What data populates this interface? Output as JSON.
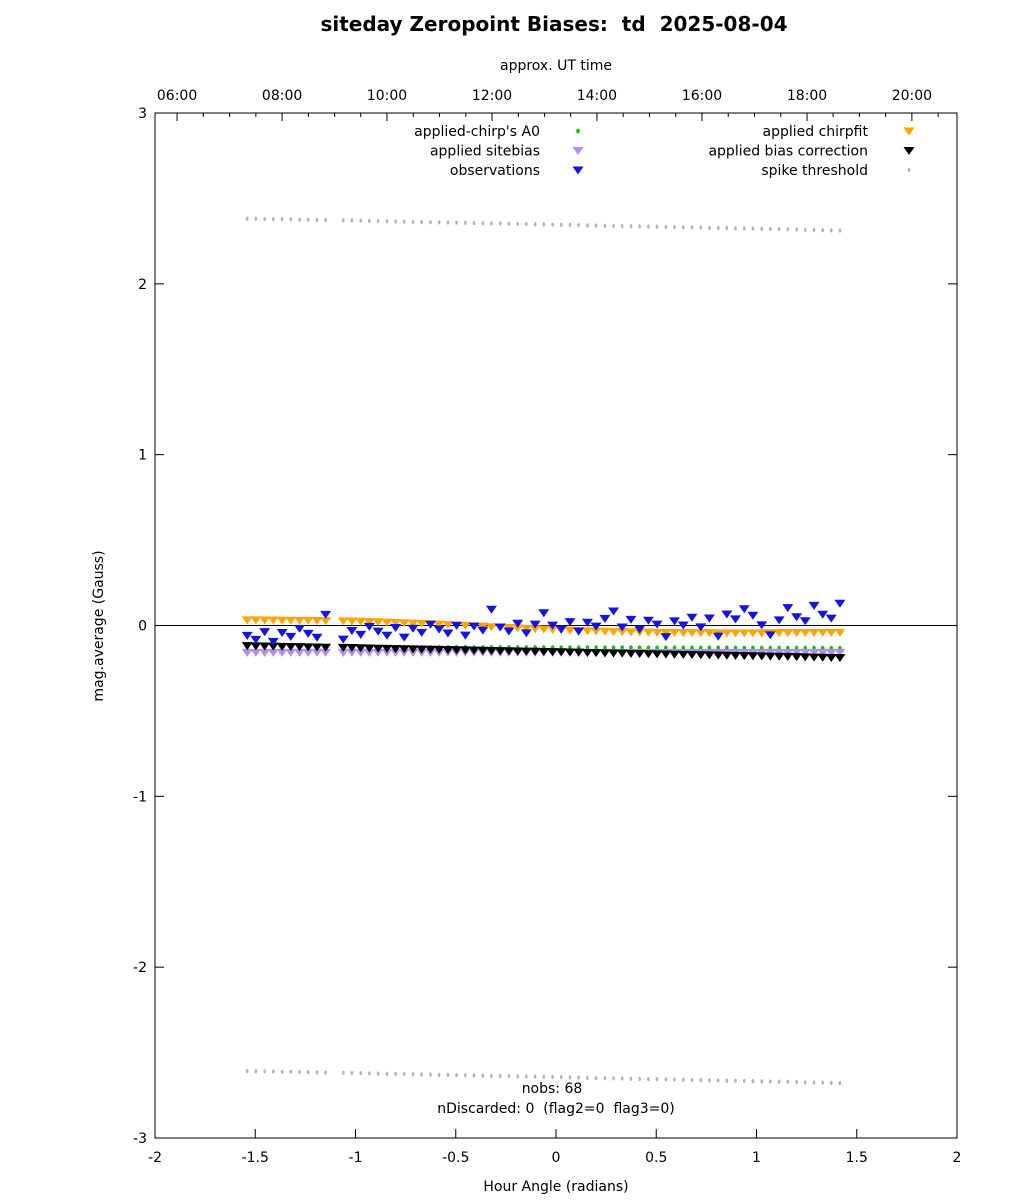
{
  "title": "siteday Zeropoint Biases:  td  2025-08-04",
  "annotations": {
    "nobs": "nobs: 68",
    "ndiscarded": "nDiscarded: 0  (flag2=0  flag3=0)"
  },
  "legend": {
    "items": [
      {
        "label": "applied-chirp's A0",
        "marker": "dot-small",
        "color": "#00c400"
      },
      {
        "label": "applied chirpfit",
        "marker": "triangle-down",
        "color": "#ffa500"
      },
      {
        "label": "applied sitebias",
        "marker": "triangle-down",
        "color": "#b18ff2"
      },
      {
        "label": "applied bias correction",
        "marker": "triangle-down",
        "color": "#000000"
      },
      {
        "label": "observations",
        "marker": "triangle-down",
        "color": "#1414e0"
      },
      {
        "label": "spike threshold",
        "marker": "dot-tiny",
        "color": "#b2b2b2"
      }
    ]
  },
  "chart_data": {
    "type": "scatter",
    "title": "siteday Zeropoint Biases:  td  2025-08-04",
    "xlabel": "Hour Angle (radians)",
    "x2label": "approx. UT time",
    "ylabel": "mag.average (Gauss)",
    "xlim": [
      -2,
      2
    ],
    "ylim": [
      -3,
      3
    ],
    "grid": false,
    "legend_position": "top-inside-two-columns",
    "axes": {
      "left": {
        "label": "mag.average (Gauss)",
        "tick_labels": [
          "3",
          "2",
          "1",
          "0",
          "-1",
          "-2",
          "-3"
        ],
        "tick_values": [
          3,
          2,
          1,
          0,
          -1,
          -2,
          -3
        ]
      },
      "bottom": {
        "label": "Hour Angle (radians)",
        "tick_labels": [
          "-2",
          "-1.5",
          "-1",
          "-0.5",
          "0",
          "0.5",
          "1",
          "1.5",
          "2"
        ],
        "tick_values": [
          -2,
          -1.5,
          -1,
          -0.5,
          0,
          0.5,
          1,
          1.5,
          2
        ]
      },
      "top": {
        "label": "approx. UT time",
        "major_tick_labels": [
          "06:00",
          "08:00",
          "10:00",
          "12:00",
          "14:00",
          "16:00",
          "18:00",
          "20:00"
        ],
        "major_tick_ha": [
          -1.89,
          -1.366,
          -0.843,
          -0.319,
          0.204,
          0.728,
          1.252,
          1.775
        ],
        "minor_tick_ha": [
          -1.759,
          -1.628,
          -1.497,
          -1.235,
          -1.104,
          -0.974,
          -0.712,
          -0.581,
          -0.45,
          -0.188,
          -0.057,
          0.073,
          0.335,
          0.466,
          0.597,
          0.859,
          0.99,
          1.121,
          1.382,
          1.513,
          1.644,
          1.906
        ]
      }
    },
    "nobs": 68,
    "ndiscarded": 0,
    "x": [
      -1.54,
      -1.497,
      -1.453,
      -1.41,
      -1.366,
      -1.323,
      -1.279,
      -1.236,
      -1.192,
      -1.149,
      -1.061,
      -1.018,
      -0.974,
      -0.931,
      -0.887,
      -0.843,
      -0.8,
      -0.757,
      -0.713,
      -0.67,
      -0.626,
      -0.583,
      -0.539,
      -0.496,
      -0.452,
      -0.409,
      -0.365,
      -0.322,
      -0.278,
      -0.235,
      -0.191,
      -0.148,
      -0.104,
      -0.061,
      -0.017,
      0.026,
      0.07,
      0.113,
      0.157,
      0.2,
      0.244,
      0.287,
      0.33,
      0.374,
      0.417,
      0.461,
      0.504,
      0.548,
      0.591,
      0.635,
      0.678,
      0.722,
      0.765,
      0.809,
      0.852,
      0.895,
      0.939,
      0.982,
      1.026,
      1.069,
      1.113,
      1.156,
      1.2,
      1.243,
      1.287,
      1.33,
      1.373,
      1.416
    ],
    "series": [
      {
        "name": "applied-chirp's A0",
        "marker": "dot-small",
        "color": "#00c400",
        "values": [
          -0.126,
          -0.126,
          -0.126,
          -0.126,
          -0.126,
          -0.127,
          -0.127,
          -0.127,
          -0.127,
          -0.127,
          -0.127,
          -0.127,
          -0.127,
          -0.127,
          -0.127,
          -0.128,
          -0.128,
          -0.128,
          -0.128,
          -0.128,
          -0.128,
          -0.128,
          -0.128,
          -0.128,
          -0.128,
          -0.129,
          -0.129,
          -0.129,
          -0.129,
          -0.129,
          -0.129,
          -0.129,
          -0.129,
          -0.129,
          -0.129,
          -0.13,
          -0.13,
          -0.13,
          -0.13,
          -0.13,
          -0.13,
          -0.13,
          -0.13,
          -0.13,
          -0.13,
          -0.131,
          -0.131,
          -0.131,
          -0.131,
          -0.131,
          -0.131,
          -0.131,
          -0.131,
          -0.131,
          -0.131,
          -0.132,
          -0.132,
          -0.132,
          -0.132,
          -0.132,
          -0.132,
          -0.132,
          -0.132,
          -0.132,
          -0.132,
          -0.133,
          -0.133,
          -0.133
        ]
      },
      {
        "name": "applied chirpfit",
        "marker": "triangle-down",
        "color": "#ffa500",
        "values": [
          0.033,
          0.033,
          0.032,
          0.032,
          0.031,
          0.031,
          0.03,
          0.03,
          0.029,
          0.028,
          0.027,
          0.026,
          0.025,
          0.023,
          0.022,
          0.02,
          0.018,
          0.016,
          0.014,
          0.012,
          0.01,
          0.008,
          0.006,
          0.003,
          0.001,
          -0.002,
          -0.004,
          -0.007,
          -0.009,
          -0.012,
          -0.014,
          -0.017,
          -0.019,
          -0.021,
          -0.023,
          -0.025,
          -0.027,
          -0.029,
          -0.031,
          -0.032,
          -0.034,
          -0.035,
          -0.036,
          -0.037,
          -0.038,
          -0.039,
          -0.04,
          -0.04,
          -0.041,
          -0.041,
          -0.042,
          -0.042,
          -0.042,
          -0.043,
          -0.043,
          -0.043,
          -0.043,
          -0.043,
          -0.043,
          -0.042,
          -0.042,
          -0.042,
          -0.041,
          -0.041,
          -0.041,
          -0.04,
          -0.04,
          -0.04
        ]
      },
      {
        "name": "applied sitebias",
        "marker": "triangle-down",
        "color": "#b18ff2",
        "values": [
          -0.157,
          -0.157,
          -0.157,
          -0.157,
          -0.157,
          -0.157,
          -0.157,
          -0.157,
          -0.157,
          -0.157,
          -0.157,
          -0.157,
          -0.157,
          -0.157,
          -0.157,
          -0.157,
          -0.157,
          -0.157,
          -0.157,
          -0.157,
          -0.157,
          -0.157,
          -0.157,
          -0.157,
          -0.157,
          -0.157,
          -0.157,
          -0.157,
          -0.157,
          -0.157,
          -0.157,
          -0.157,
          -0.157,
          -0.157,
          -0.157,
          -0.157,
          -0.157,
          -0.157,
          -0.157,
          -0.157,
          -0.157,
          -0.157,
          -0.157,
          -0.157,
          -0.157,
          -0.157,
          -0.157,
          -0.157,
          -0.157,
          -0.157,
          -0.157,
          -0.157,
          -0.157,
          -0.157,
          -0.157,
          -0.157,
          -0.157,
          -0.157,
          -0.157,
          -0.157,
          -0.157,
          -0.157,
          -0.157,
          -0.157,
          -0.157,
          -0.157,
          -0.157,
          -0.157
        ]
      },
      {
        "name": "applied bias correction",
        "marker": "triangle-down",
        "color": "#000000",
        "values": [
          -0.118,
          -0.119,
          -0.12,
          -0.121,
          -0.122,
          -0.123,
          -0.124,
          -0.125,
          -0.126,
          -0.127,
          -0.128,
          -0.129,
          -0.13,
          -0.132,
          -0.133,
          -0.134,
          -0.135,
          -0.136,
          -0.137,
          -0.138,
          -0.139,
          -0.14,
          -0.141,
          -0.142,
          -0.143,
          -0.144,
          -0.145,
          -0.146,
          -0.147,
          -0.148,
          -0.149,
          -0.15,
          -0.151,
          -0.152,
          -0.153,
          -0.154,
          -0.155,
          -0.156,
          -0.158,
          -0.159,
          -0.16,
          -0.161,
          -0.162,
          -0.163,
          -0.164,
          -0.165,
          -0.166,
          -0.167,
          -0.168,
          -0.169,
          -0.17,
          -0.171,
          -0.172,
          -0.173,
          -0.174,
          -0.175,
          -0.176,
          -0.177,
          -0.178,
          -0.179,
          -0.18,
          -0.181,
          -0.182,
          -0.184,
          -0.185,
          -0.186,
          -0.187,
          -0.188
        ]
      },
      {
        "name": "observations",
        "marker": "triangle-down",
        "color": "#1414e0",
        "values": [
          -0.058,
          -0.081,
          -0.036,
          -0.093,
          -0.041,
          -0.064,
          -0.017,
          -0.046,
          -0.069,
          0.065,
          -0.08,
          -0.029,
          -0.052,
          -0.005,
          -0.033,
          -0.057,
          -0.012,
          -0.068,
          -0.016,
          -0.04,
          0.007,
          -0.021,
          -0.044,
          0.001,
          -0.056,
          -0.004,
          -0.027,
          0.095,
          -0.009,
          -0.032,
          0.013,
          -0.043,
          0.008,
          0.075,
          0.002,
          -0.021,
          0.023,
          -0.033,
          0.019,
          -0.004,
          0.042,
          0.085,
          -0.009,
          0.036,
          -0.021,
          0.031,
          0.008,
          -0.065,
          0.027,
          0.003,
          0.048,
          -0.008,
          0.044,
          -0.062,
          0.067,
          0.039,
          0.098,
          0.06,
          0.004,
          -0.055,
          0.033,
          0.105,
          0.051,
          0.028,
          0.118,
          0.066,
          0.043,
          0.13
        ]
      },
      {
        "name": "spike threshold (upper)",
        "marker": "dot-tiny",
        "color": "#b2b2b2",
        "values": [
          2.382,
          2.381,
          2.38,
          2.379,
          2.378,
          2.377,
          2.376,
          2.375,
          2.374,
          2.373,
          2.372,
          2.371,
          2.37,
          2.368,
          2.367,
          2.366,
          2.365,
          2.364,
          2.363,
          2.362,
          2.361,
          2.36,
          2.359,
          2.358,
          2.357,
          2.356,
          2.355,
          2.354,
          2.353,
          2.352,
          2.351,
          2.35,
          2.349,
          2.348,
          2.347,
          2.346,
          2.345,
          2.344,
          2.342,
          2.341,
          2.34,
          2.339,
          2.338,
          2.337,
          2.336,
          2.335,
          2.334,
          2.333,
          2.332,
          2.331,
          2.33,
          2.329,
          2.328,
          2.327,
          2.326,
          2.325,
          2.324,
          2.323,
          2.322,
          2.321,
          2.32,
          2.319,
          2.318,
          2.316,
          2.315,
          2.314,
          2.313,
          2.312
        ]
      },
      {
        "name": "spike threshold (lower)",
        "marker": "dot-tiny",
        "color": "#b2b2b2",
        "values": [
          -2.608,
          -2.609,
          -2.61,
          -2.611,
          -2.612,
          -2.613,
          -2.614,
          -2.615,
          -2.616,
          -2.617,
          -2.618,
          -2.619,
          -2.62,
          -2.622,
          -2.623,
          -2.624,
          -2.625,
          -2.626,
          -2.627,
          -2.628,
          -2.629,
          -2.63,
          -2.631,
          -2.632,
          -2.633,
          -2.634,
          -2.635,
          -2.636,
          -2.637,
          -2.638,
          -2.639,
          -2.64,
          -2.641,
          -2.642,
          -2.643,
          -2.644,
          -2.645,
          -2.646,
          -2.648,
          -2.649,
          -2.65,
          -2.651,
          -2.652,
          -2.653,
          -2.654,
          -2.655,
          -2.656,
          -2.657,
          -2.658,
          -2.659,
          -2.66,
          -2.661,
          -2.662,
          -2.663,
          -2.664,
          -2.665,
          -2.666,
          -2.667,
          -2.668,
          -2.669,
          -2.67,
          -2.671,
          -2.672,
          -2.674,
          -2.675,
          -2.676,
          -2.677,
          -2.678
        ]
      }
    ]
  }
}
